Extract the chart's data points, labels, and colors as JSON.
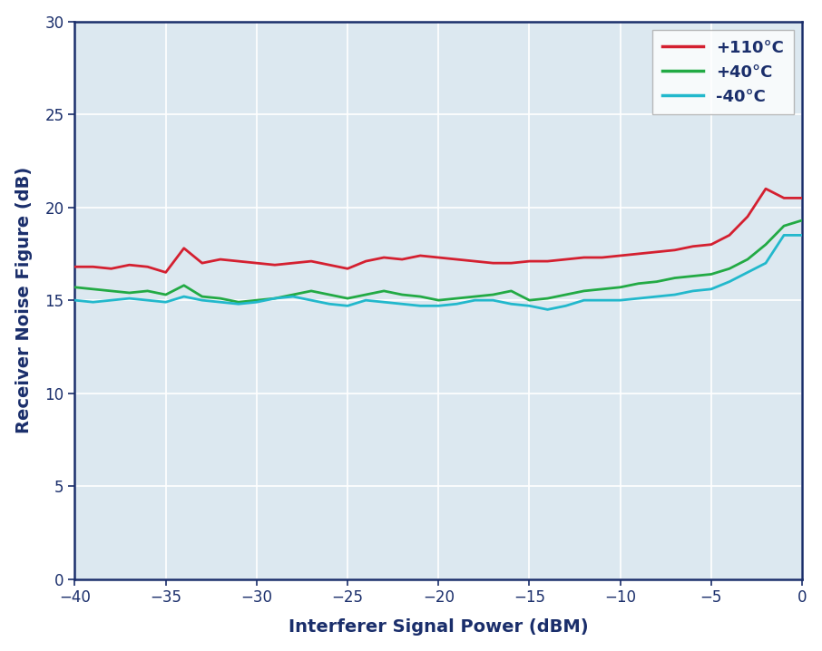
{
  "xlabel": "Interferer Signal Power (dBM)",
  "ylabel": "Receiver Noise Figure (dB)",
  "xlim": [
    -40,
    0
  ],
  "ylim": [
    0,
    30
  ],
  "xticks": [
    -40,
    -35,
    -30,
    -25,
    -20,
    -15,
    -10,
    -5,
    0
  ],
  "yticks": [
    0,
    5,
    10,
    15,
    20,
    25,
    30
  ],
  "legend_labels": [
    "+110°C",
    "+40°C",
    "-40°C"
  ],
  "legend_colors": [
    "#d42030",
    "#22aa44",
    "#22b8cc"
  ],
  "fig_bg_color": "#ffffff",
  "plot_bg_color": "#dce8f0",
  "grid_color": "#ffffff",
  "axis_color": "#1a2e6b",
  "label_color": "#1a2e6b",
  "tick_color": "#1a2e6b",
  "line_width": 2.0,
  "x": [
    -40,
    -39,
    -38,
    -37,
    -36,
    -35,
    -34,
    -33,
    -32,
    -31,
    -30,
    -29,
    -28,
    -27,
    -26,
    -25,
    -24,
    -23,
    -22,
    -21,
    -20,
    -19,
    -18,
    -17,
    -16,
    -15,
    -14,
    -13,
    -12,
    -11,
    -10,
    -9,
    -8,
    -7,
    -6,
    -5,
    -4,
    -3,
    -2,
    -1,
    0
  ],
  "y_110": [
    16.8,
    16.8,
    16.7,
    16.9,
    16.8,
    16.5,
    17.8,
    17.0,
    17.2,
    17.1,
    17.0,
    16.9,
    17.0,
    17.1,
    16.9,
    16.7,
    17.1,
    17.3,
    17.2,
    17.4,
    17.3,
    17.2,
    17.1,
    17.0,
    17.0,
    17.1,
    17.1,
    17.2,
    17.3,
    17.3,
    17.4,
    17.5,
    17.6,
    17.7,
    17.9,
    18.0,
    18.5,
    19.5,
    21.0,
    20.5,
    20.5
  ],
  "y_40": [
    15.7,
    15.6,
    15.5,
    15.4,
    15.5,
    15.3,
    15.8,
    15.2,
    15.1,
    14.9,
    15.0,
    15.1,
    15.3,
    15.5,
    15.3,
    15.1,
    15.3,
    15.5,
    15.3,
    15.2,
    15.0,
    15.1,
    15.2,
    15.3,
    15.5,
    15.0,
    15.1,
    15.3,
    15.5,
    15.6,
    15.7,
    15.9,
    16.0,
    16.2,
    16.3,
    16.4,
    16.7,
    17.2,
    18.0,
    19.0,
    19.3
  ],
  "y_m40": [
    15.0,
    14.9,
    15.0,
    15.1,
    15.0,
    14.9,
    15.2,
    15.0,
    14.9,
    14.8,
    14.9,
    15.1,
    15.2,
    15.0,
    14.8,
    14.7,
    15.0,
    14.9,
    14.8,
    14.7,
    14.7,
    14.8,
    15.0,
    15.0,
    14.8,
    14.7,
    14.5,
    14.7,
    15.0,
    15.0,
    15.0,
    15.1,
    15.2,
    15.3,
    15.5,
    15.6,
    16.0,
    16.5,
    17.0,
    18.5,
    18.5
  ]
}
